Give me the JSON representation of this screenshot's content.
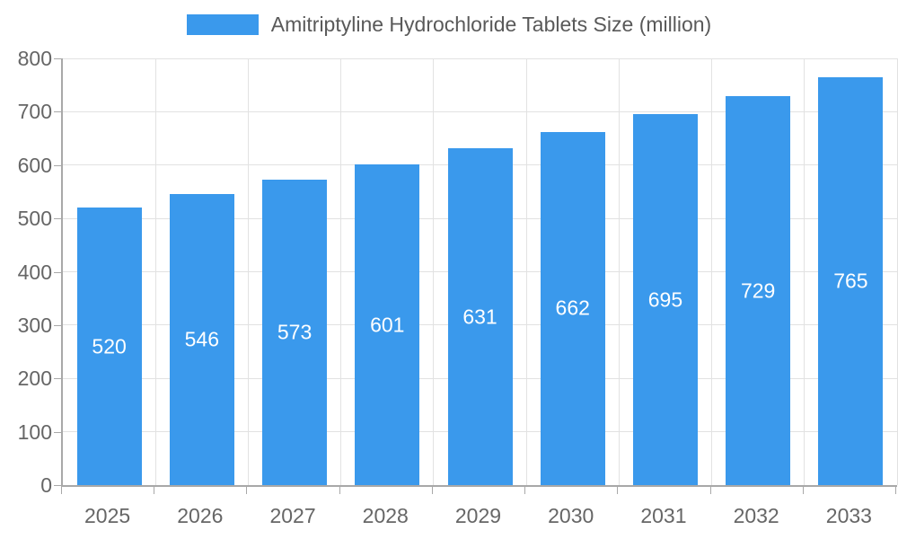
{
  "legend": {
    "label": "Amitriptyline Hydrochloride Tablets Size (million)"
  },
  "chart_data": {
    "type": "bar",
    "title": "",
    "categories": [
      "2025",
      "2026",
      "2027",
      "2028",
      "2029",
      "2030",
      "2031",
      "2032",
      "2033"
    ],
    "values": [
      520,
      546,
      573,
      601,
      631,
      662,
      695,
      729,
      765
    ],
    "series": [
      {
        "name": "Amitriptyline Hydrochloride Tablets Size (million)",
        "values": [
          520,
          546,
          573,
          601,
          631,
          662,
          695,
          729,
          765
        ]
      }
    ],
    "xlabel": "",
    "ylabel": "",
    "ylim": [
      0,
      800
    ],
    "ytick_step": 100,
    "grid": true,
    "legend_position": "top",
    "colors": {
      "bar": "#3A99EC",
      "bar_value_label": "#ffffff",
      "axis_line": "#a8a8a8",
      "gridline": "#e2e2e2",
      "tick_label": "#666666",
      "legend_text": "#595959"
    }
  }
}
